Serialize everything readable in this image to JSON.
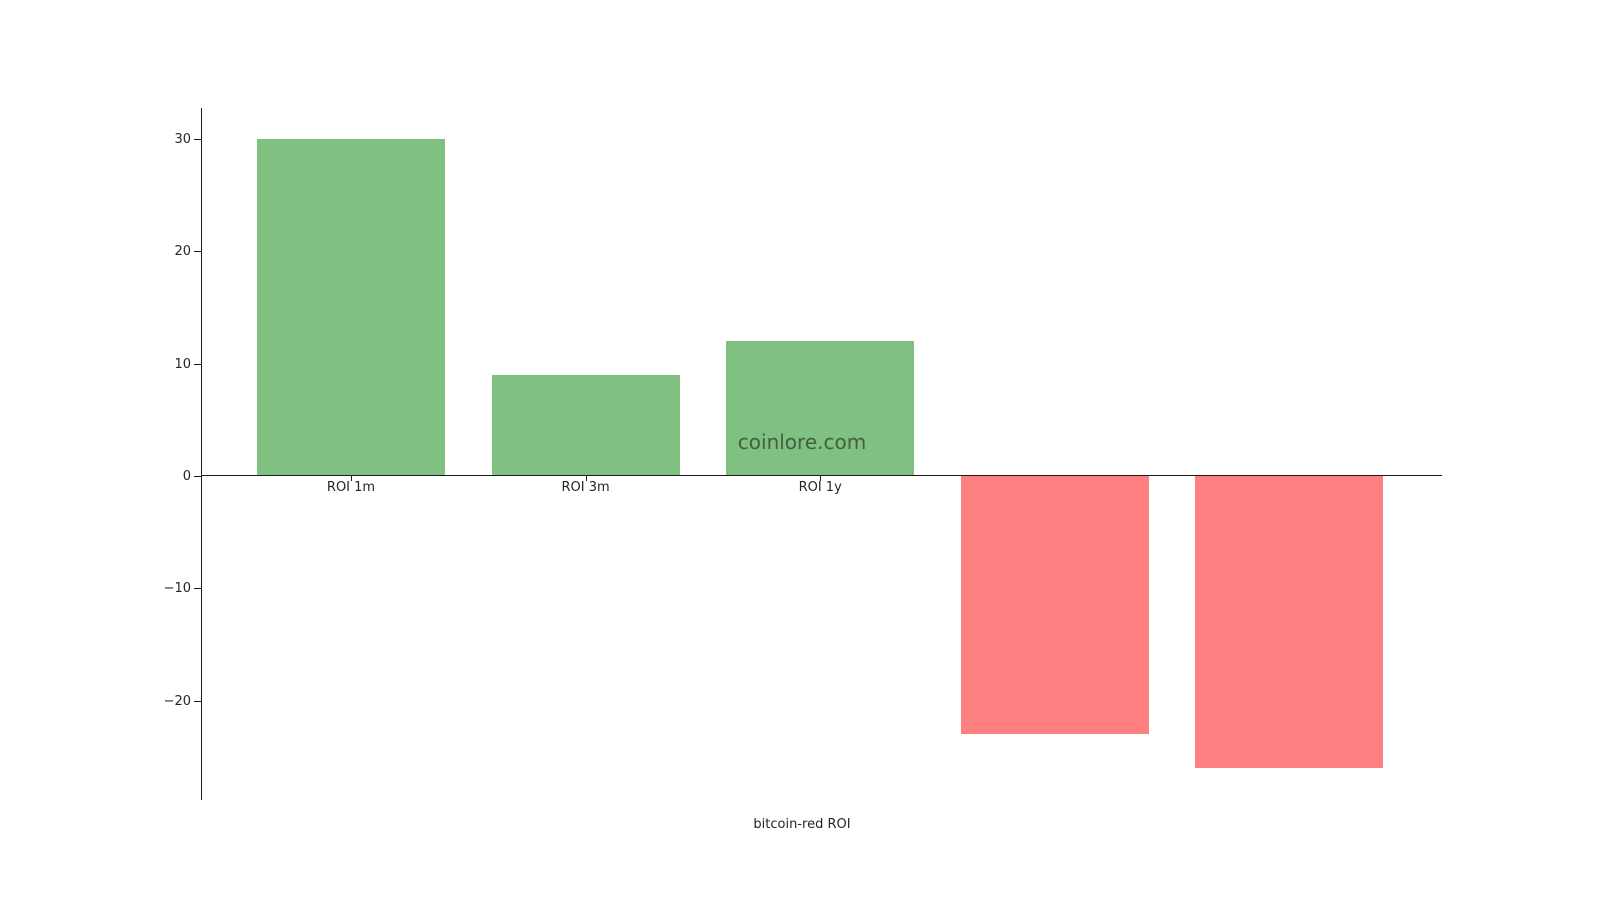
{
  "page": {
    "background_color": "#ffffff"
  },
  "watermark": {
    "text": "coinlore.com",
    "color": "rgba(0,0,0,0.5)"
  },
  "axis_color": "#1c1c1c",
  "text_color": "#262626",
  "chart_data": {
    "type": "bar",
    "title": "",
    "xlabel": "bitcoin-red ROI",
    "ylabel": "",
    "categories": [
      "ROI 1m",
      "ROI 3m",
      "ROI 1y",
      "",
      ""
    ],
    "values": [
      30,
      9,
      12,
      -23,
      -26
    ],
    "series": [
      {
        "name": "bitcoin-red ROI",
        "values": [
          30,
          9,
          12,
          -23,
          -26
        ]
      }
    ],
    "bar_colors": [
      "#80C080",
      "#80C080",
      "#80C080",
      "#FF8080",
      "#FF8080"
    ],
    "positive_color": "#80C080",
    "negative_color": "#FF8080",
    "y_ticks": [
      30,
      20,
      10,
      0,
      -10,
      -20
    ],
    "y_tick_labels": [
      "30",
      "20",
      "10",
      "0",
      "−10",
      "−20"
    ],
    "ylim": [
      -28.9,
      32.8
    ],
    "grid": false,
    "legend_position": "none",
    "notes": "x tick labels for the two negative bars are hidden behind the bars"
  }
}
